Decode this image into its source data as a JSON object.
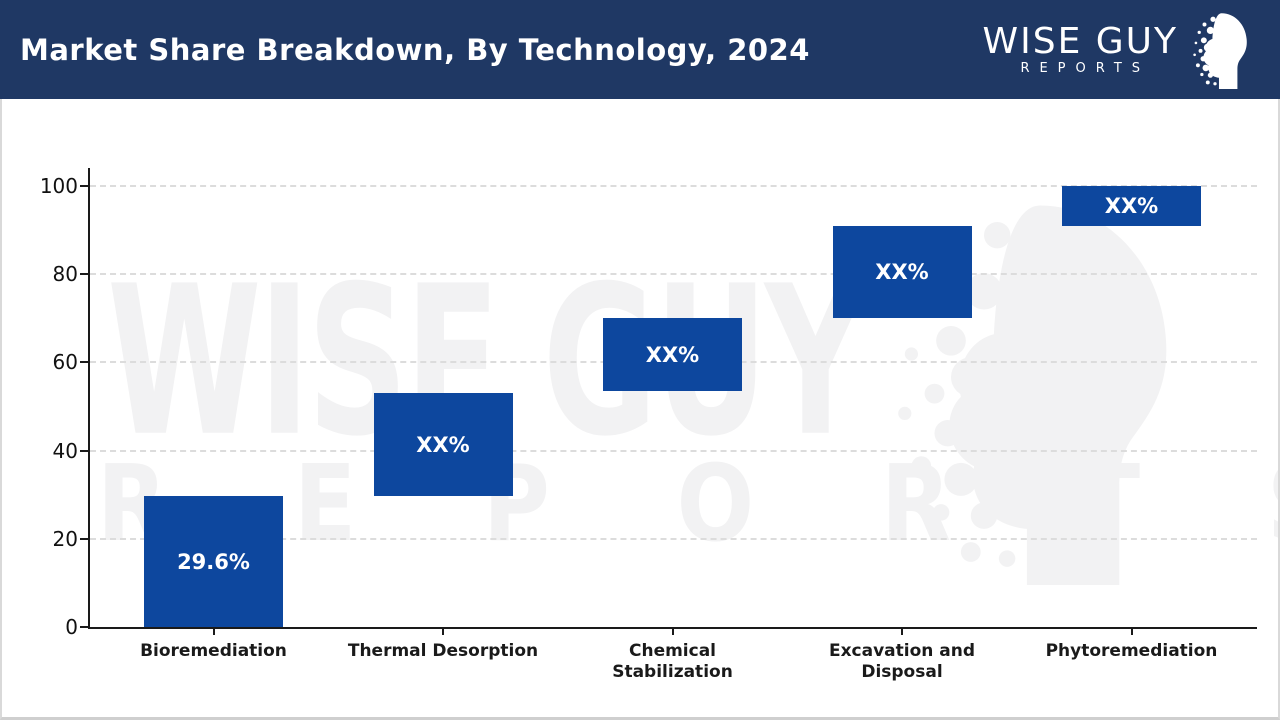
{
  "header": {
    "title": "Market Share Breakdown, By Technology, 2024",
    "logo": {
      "line1": "WISE GUY",
      "line2": "REPORTS",
      "face_icon": "dotted-head-profile"
    }
  },
  "watermark": {
    "line1": "WISE GUY",
    "line2": "R E P O R T S",
    "face_icon": "dotted-head-profile"
  },
  "colors": {
    "header_bg": "#1f3864",
    "bar": "#0d479e",
    "bar_label": "#ffffff",
    "grid": "#dcdcdc",
    "axis": "#1a1a1a",
    "watermark": "#f2f2f3"
  },
  "chart_data": {
    "type": "bar",
    "subtype": "floating-segment-waterfall",
    "title": "Market Share Breakdown, By Technology, 2024",
    "xlabel": "",
    "ylabel": "",
    "ylim": [
      0,
      105
    ],
    "y_ticks": [
      0,
      20,
      40,
      60,
      80,
      100
    ],
    "grid": "horizontal-dashed",
    "legend": "none",
    "categories": [
      "Bioremediation",
      "Thermal Desorption",
      "Chemical Stabilization",
      "Excavation and Disposal",
      "Phytoremediation"
    ],
    "segments": [
      {
        "category": "Bioremediation",
        "category_lines": [
          "Bioremediation"
        ],
        "start": 0,
        "end": 29.6,
        "value": 29.6,
        "label": "29.6%"
      },
      {
        "category": "Thermal Desorption",
        "category_lines": [
          "Thermal Desorption"
        ],
        "start": 29.6,
        "end": 53.0,
        "value": 23.4,
        "label": "XX%"
      },
      {
        "category": "Chemical Stabilization",
        "category_lines": [
          "Chemical",
          "Stabilization"
        ],
        "start": 53.5,
        "end": 70.0,
        "value": 16.5,
        "label": "XX%"
      },
      {
        "category": "Excavation and Disposal",
        "category_lines": [
          "Excavation and",
          "Disposal"
        ],
        "start": 70.0,
        "end": 91.0,
        "value": 21.0,
        "label": "XX%"
      },
      {
        "category": "Phytoremediation",
        "category_lines": [
          "Phytoremediation"
        ],
        "start": 91.0,
        "end": 100.0,
        "value": 9.0,
        "label": "XX%"
      }
    ]
  }
}
